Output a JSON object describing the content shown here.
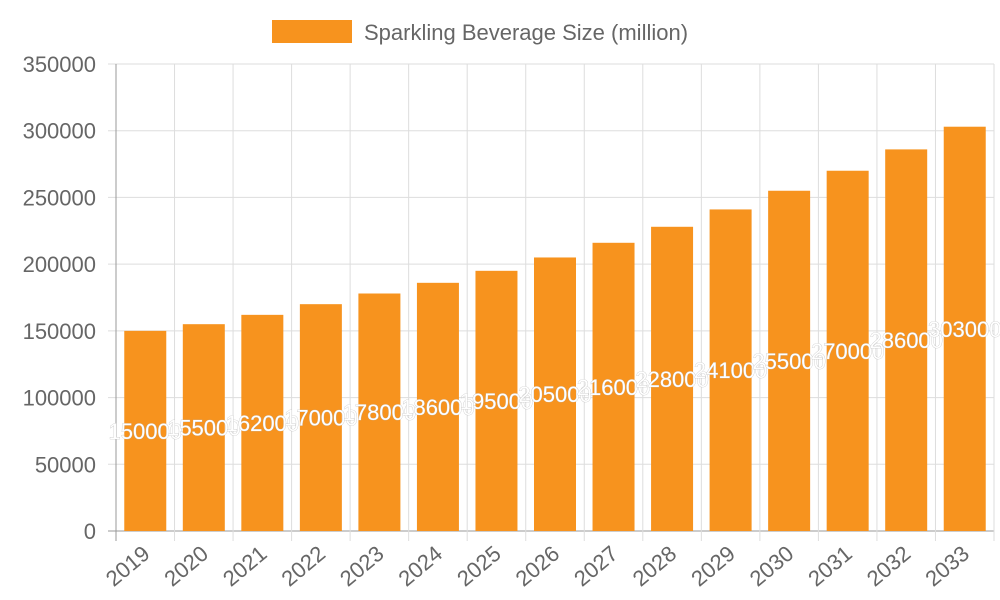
{
  "chart_data": {
    "type": "bar",
    "categories": [
      "2019",
      "2020",
      "2021",
      "2022",
      "2023",
      "2024",
      "2025",
      "2026",
      "2027",
      "2028",
      "2029",
      "2030",
      "2031",
      "2032",
      "2033"
    ],
    "series": [
      {
        "name": "Sparkling Beverage Size (million)",
        "values": [
          150000,
          155000,
          162000,
          170000,
          178000,
          186000,
          195000,
          205000,
          216000,
          228000,
          241000,
          255000,
          270000,
          286000,
          303000
        ],
        "color": "#f7931e"
      }
    ],
    "ylim": [
      0,
      350000
    ],
    "yticks": [
      0,
      50000,
      100000,
      150000,
      200000,
      250000,
      300000,
      350000
    ],
    "grid": true,
    "legend": "top",
    "data_labels": true
  }
}
